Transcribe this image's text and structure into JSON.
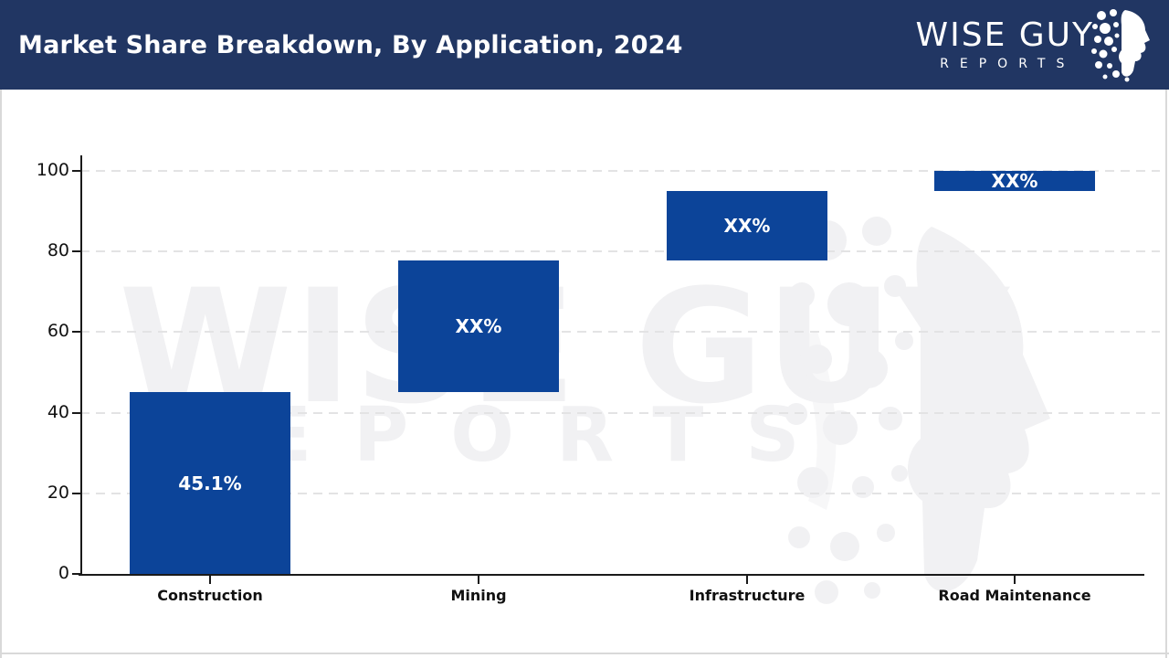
{
  "header": {
    "title": "Market Share Breakdown, By Application, 2024",
    "logo": {
      "line1": "WISE GUY",
      "line2": "REPORTS"
    }
  },
  "watermark": {
    "line1": "WISE GUY",
    "line2": "REPORTS"
  },
  "chart_data": {
    "type": "bar",
    "subtype": "floating-segment (waterfall-style) market share bars",
    "title": "Market Share Breakdown, By Application, 2024",
    "categories": [
      "Construction",
      "Mining",
      "Infrastructure",
      "Road Maintenance"
    ],
    "segments": [
      {
        "category": "Construction",
        "start": 0,
        "end": 45.1,
        "label": "45.1%"
      },
      {
        "category": "Mining",
        "start": 45.1,
        "end": 77.8,
        "label": "XX%"
      },
      {
        "category": "Infrastructure",
        "start": 77.8,
        "end": 94.9,
        "label": "XX%"
      },
      {
        "category": "Road Maintenance",
        "start": 94.9,
        "end": 100,
        "label": "XX%"
      }
    ],
    "xlabel": "",
    "ylabel": "",
    "ylim": [
      0,
      100
    ],
    "yticks": [
      0,
      20,
      40,
      60,
      80,
      100
    ],
    "grid": "horizontal dashed",
    "legend": "none",
    "colors": {
      "bar": "#0c4499",
      "bar_label": "#ffffff",
      "header_bg": "#213663",
      "axis": "#1a1a1a",
      "gridline": "#e3e3e4",
      "watermark": "#f1f1f3"
    }
  }
}
